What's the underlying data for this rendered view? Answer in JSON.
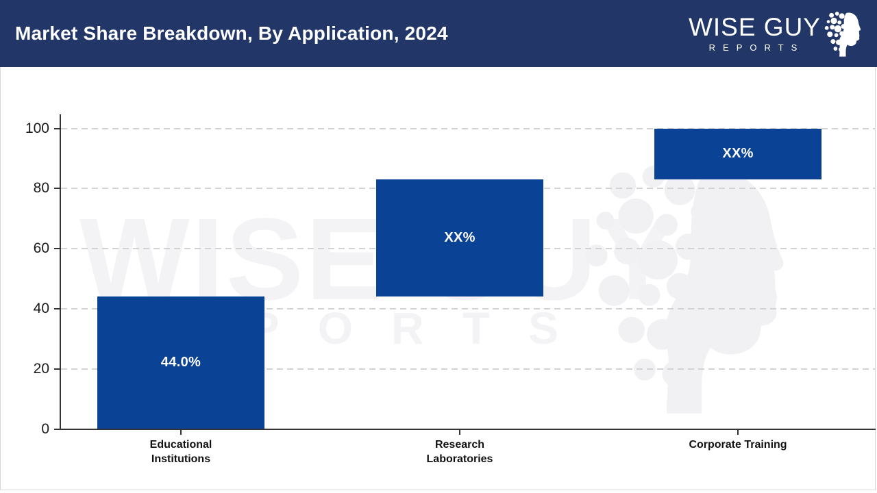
{
  "header": {
    "title": "Market Share Breakdown, By Application, 2024",
    "bg_color": "#223768",
    "logo": {
      "line1": "WISE GUY",
      "line2": "REPORTS"
    }
  },
  "watermark": {
    "line1": "WISE GUY",
    "line2": "REPORTS"
  },
  "chart_data": {
    "type": "bar",
    "variant": "floating-segment-waterfall",
    "title": "Market Share Breakdown, By Application, 2024",
    "categories": [
      "Educational\nInstitutions",
      "Research\nLaboratories",
      "Corporate Training"
    ],
    "segments": [
      {
        "category": "Educational Institutions",
        "start": 0,
        "end": 44,
        "label": "44.0%"
      },
      {
        "category": "Research Laboratories",
        "start": 44,
        "end": 83,
        "label": "XX%"
      },
      {
        "category": "Corporate Training",
        "start": 83,
        "end": 100,
        "label": "XX%"
      }
    ],
    "ylim": [
      0,
      100
    ],
    "yticks": [
      0,
      20,
      40,
      60,
      80,
      100
    ],
    "bar_color": "#0a4296",
    "axis_color": "#333333",
    "grid": {
      "horizontal": true,
      "style": "dashed",
      "color": "#d2d2d2"
    },
    "legend": "none"
  }
}
